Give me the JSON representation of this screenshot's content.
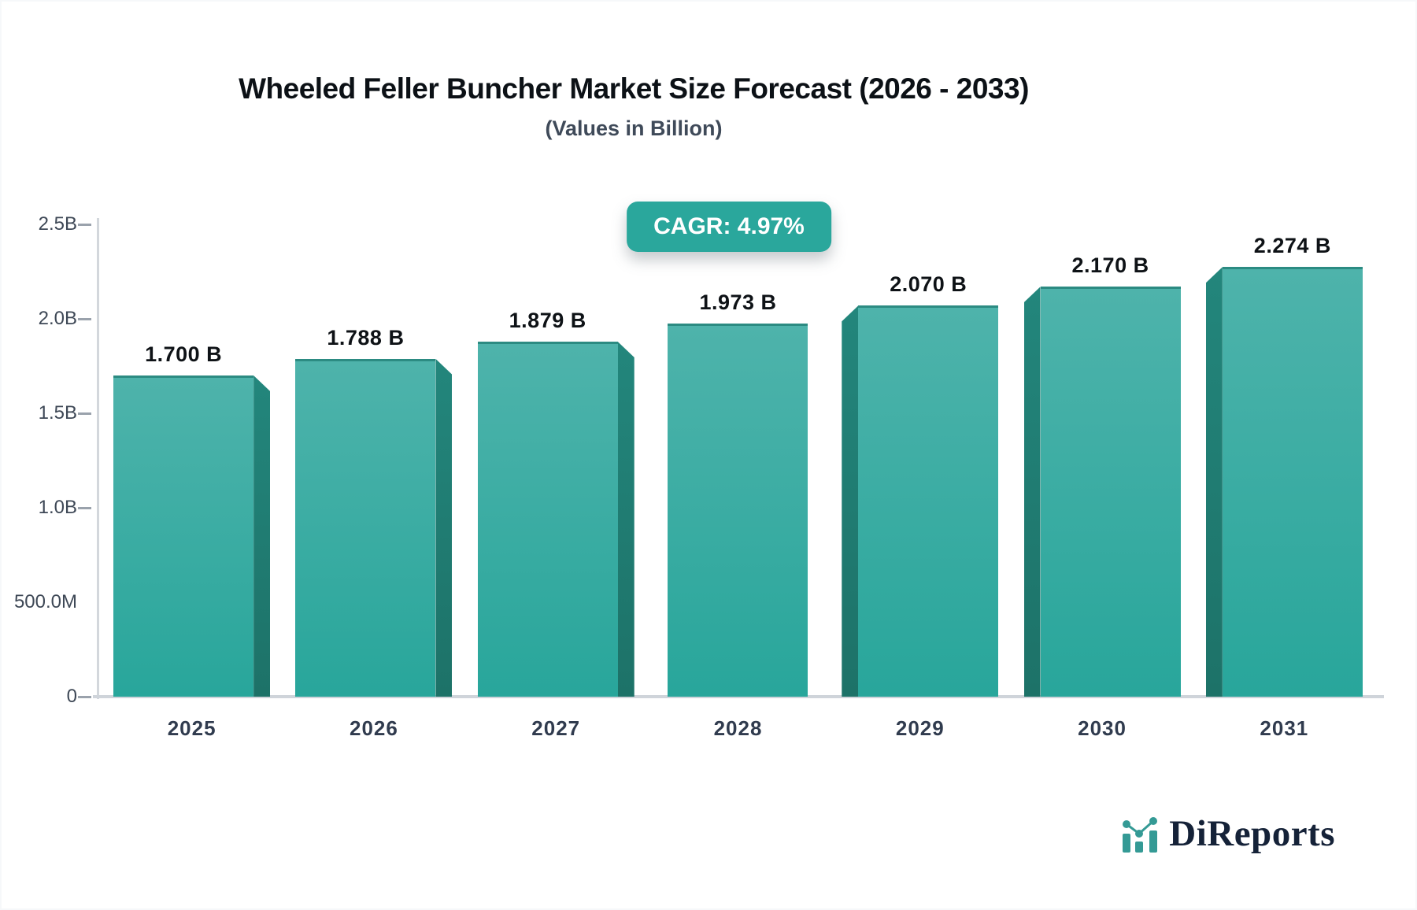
{
  "page": {
    "title": "Wheeled Feller Buncher Market Size Forecast (2026 - 2033)",
    "subtitle": "(Values in Billion)",
    "cagr_badge": "CAGR: 4.97%",
    "brand_name": "DiReports"
  },
  "chart_data": {
    "type": "bar",
    "title": "Wheeled Feller Buncher Market Size Forecast (2026 - 2033)",
    "subtitle": "(Values in Billion)",
    "annotation": "CAGR: 4.97%",
    "categories": [
      "2025",
      "2026",
      "2027",
      "2028",
      "2029",
      "2030",
      "2031"
    ],
    "values": [
      1.7,
      1.788,
      1.879,
      1.973,
      2.07,
      2.17,
      2.274
    ],
    "value_labels": [
      "1.700 B",
      "1.788 B",
      "1.879 B",
      "1.973 B",
      "2.070 B",
      "2.170 B",
      "2.274 B"
    ],
    "unit": "billion",
    "xlabel": "",
    "ylabel": "",
    "ylim": [
      0,
      2.5
    ],
    "y_ticks": [
      {
        "label": "2.5B",
        "value": 2.5,
        "tick": true
      },
      {
        "label": "2.0B",
        "value": 2.0,
        "tick": true
      },
      {
        "label": "1.5B",
        "value": 1.5,
        "tick": true
      },
      {
        "label": "1.0B",
        "value": 1.0,
        "tick": true
      },
      {
        "label": "500.0M",
        "value": 0.5,
        "tick": false
      },
      {
        "label": "0",
        "value": 0.0,
        "tick": true
      }
    ],
    "grid": false,
    "legend": "none",
    "colors": {
      "bar_top": "#4eb3ab",
      "bar_bottom": "#28a69b",
      "bar_top_edge": "#2c8b82",
      "bar_side_top": "#23867c",
      "bar_side_bottom": "#1d7268",
      "axis_line": "#d3d7dc",
      "tick": "#9aa2ac",
      "badge_bg": "#2aa79c",
      "brand_navy": "#152238",
      "brand_teal": "#349a95"
    }
  }
}
